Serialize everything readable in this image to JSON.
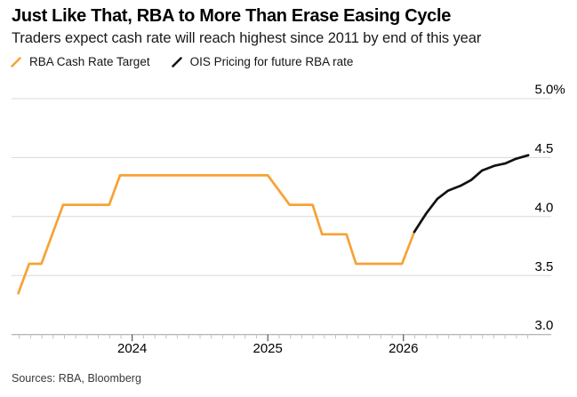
{
  "header": {
    "title": "Just Like That, RBA to More Than Erase Easing Cycle",
    "subtitle": "Traders expect cash rate will reach highest since 2011 by end of this year"
  },
  "footer": {
    "sources": "Sources: RBA, Bloomberg"
  },
  "colors": {
    "gridline": "#d8d8d8",
    "axis_line": "#9e9e9e",
    "minor_tick": "#c2c2c2",
    "major_tick": "#333333",
    "label_text": "#000000"
  },
  "chart_data": {
    "type": "line",
    "title": "Just Like That, RBA to More Than Erase Easing Cycle",
    "subtitle": "Traders expect cash rate will reach highest since 2011 by end of this year",
    "legend_position": "top-left",
    "grid": "horizontal",
    "x_axis": {
      "min": 2023.11,
      "max": 2027.09,
      "minor_tick_start": 2023.1667,
      "minor_tick_end": 2026.9167,
      "minor_tick_step_months": 1,
      "major_ticks": [
        {
          "value": 2024,
          "label": "2024"
        },
        {
          "value": 2025,
          "label": "2025"
        },
        {
          "value": 2026,
          "label": "2026"
        }
      ]
    },
    "y_axis": {
      "min": 3.0,
      "max": 5.0,
      "unit": "%",
      "ticks": [
        {
          "value": 5.0,
          "label": "5.0%"
        },
        {
          "value": 4.5,
          "label": "4.5"
        },
        {
          "value": 4.0,
          "label": "4.0"
        },
        {
          "value": 3.5,
          "label": "3.5"
        },
        {
          "value": 3.0,
          "label": "3.0"
        }
      ]
    },
    "series": [
      {
        "name": "RBA Cash Rate Target",
        "color": "#F7A234",
        "points": [
          [
            2023.16,
            3.35
          ],
          [
            2023.24,
            3.6
          ],
          [
            2023.33,
            3.6
          ],
          [
            2023.49,
            4.1
          ],
          [
            2023.83,
            4.1
          ],
          [
            2023.91,
            4.35
          ],
          [
            2025.0,
            4.35
          ],
          [
            2025.16,
            4.1
          ],
          [
            2025.33,
            4.1
          ],
          [
            2025.4,
            3.85
          ],
          [
            2025.58,
            3.85
          ],
          [
            2025.65,
            3.6
          ],
          [
            2025.99,
            3.6
          ],
          [
            2026.08,
            3.87
          ]
        ]
      },
      {
        "name": "OIS Pricing for future RBA rate",
        "color": "#111111",
        "points": [
          [
            2026.08,
            3.87
          ],
          [
            2026.17,
            4.03
          ],
          [
            2026.25,
            4.15
          ],
          [
            2026.33,
            4.22
          ],
          [
            2026.42,
            4.26
          ],
          [
            2026.5,
            4.31
          ],
          [
            2026.58,
            4.39
          ],
          [
            2026.67,
            4.43
          ],
          [
            2026.75,
            4.45
          ],
          [
            2026.83,
            4.49
          ],
          [
            2026.92,
            4.52
          ]
        ]
      }
    ]
  }
}
